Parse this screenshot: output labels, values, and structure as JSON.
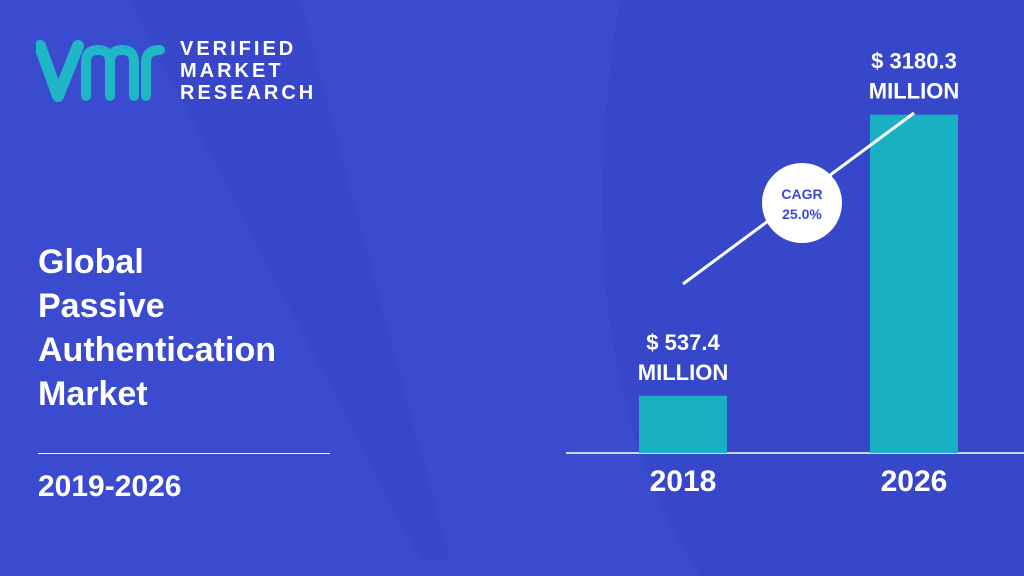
{
  "brand": {
    "logo_lines": [
      "VERIFIED",
      "MARKET",
      "RESEARCH"
    ]
  },
  "title_lines": [
    "Global",
    "Passive",
    "Authentication",
    "Market"
  ],
  "period": "2019-2026",
  "colors": {
    "background": "#3b4bd0",
    "bar": "#19b0c4",
    "logo_accent": "#1fb6c6",
    "text": "#ffffff"
  },
  "chart_data": {
    "type": "bar",
    "categories": [
      "2018",
      "2026"
    ],
    "values": [
      537.4,
      3180.3
    ],
    "value_labels": [
      [
        "$ 537.4",
        "MILLION"
      ],
      [
        "$ 3180.3",
        "MILLION"
      ]
    ],
    "ylim": [
      0,
      3600
    ],
    "cagr": [
      "CAGR",
      "25.0%"
    ],
    "grid": false
  }
}
